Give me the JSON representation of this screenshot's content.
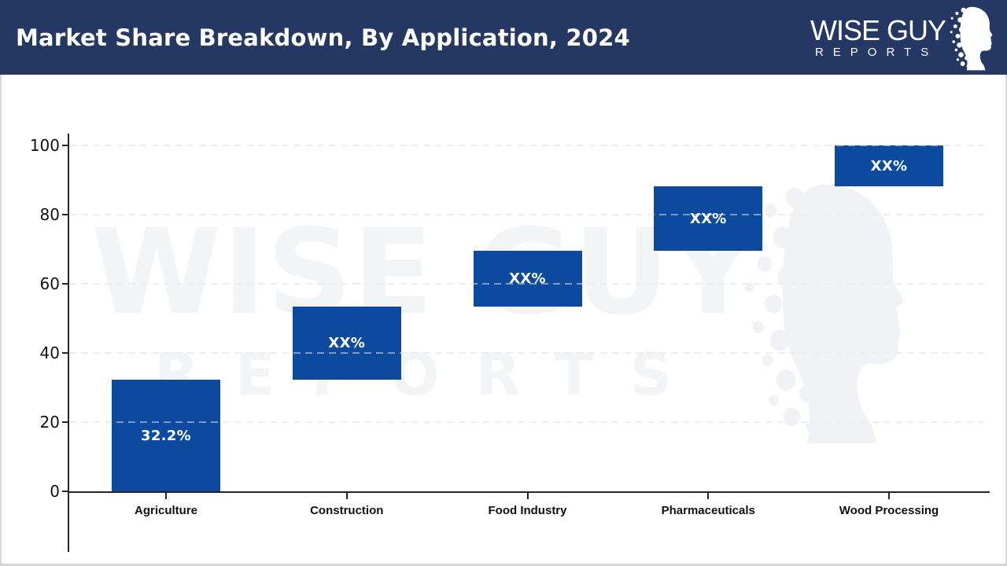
{
  "header": {
    "title": "Market Share Breakdown, By Application, 2024",
    "bg_color": "#253863",
    "logo": {
      "line1": "WISE GUY",
      "line2": "REPORTS",
      "face_icon": "face-profile-dots"
    }
  },
  "watermark": {
    "line1": "WISE GUY",
    "line2": "REPORTS",
    "color": "#f3f4f6",
    "face_icon": "face-profile-dots"
  },
  "chart_data": {
    "type": "bar",
    "subtype": "waterfall",
    "title": "Market Share Breakdown, By Application, 2024",
    "categories": [
      "Agriculture",
      "Construction",
      "Food Industry",
      "Pharmaceuticals",
      "Wood Processing"
    ],
    "series": [
      {
        "name": "Market Share",
        "segments": [
          {
            "category": "Agriculture",
            "start": 0,
            "end": 32.2,
            "label": "32.2%"
          },
          {
            "category": "Construction",
            "start": 32.2,
            "end": 53.5,
            "label": "XX%"
          },
          {
            "category": "Food Industry",
            "start": 53.5,
            "end": 69.6,
            "label": "XX%"
          },
          {
            "category": "Pharmaceuticals",
            "start": 69.6,
            "end": 88.1,
            "label": "XX%"
          },
          {
            "category": "Wood Processing",
            "start": 88.1,
            "end": 100,
            "label": "XX%"
          }
        ]
      }
    ],
    "xlabel": "",
    "ylabel": "",
    "ylim": [
      0,
      100
    ],
    "yticks": [
      0,
      20,
      40,
      60,
      80,
      100
    ],
    "grid": "horizontal-dashed",
    "legend": "none",
    "bar_color": "#0b4a9e",
    "bar_label_color": "#ffffff",
    "axis_color": "#262626",
    "tick_label_color": "#111111"
  }
}
